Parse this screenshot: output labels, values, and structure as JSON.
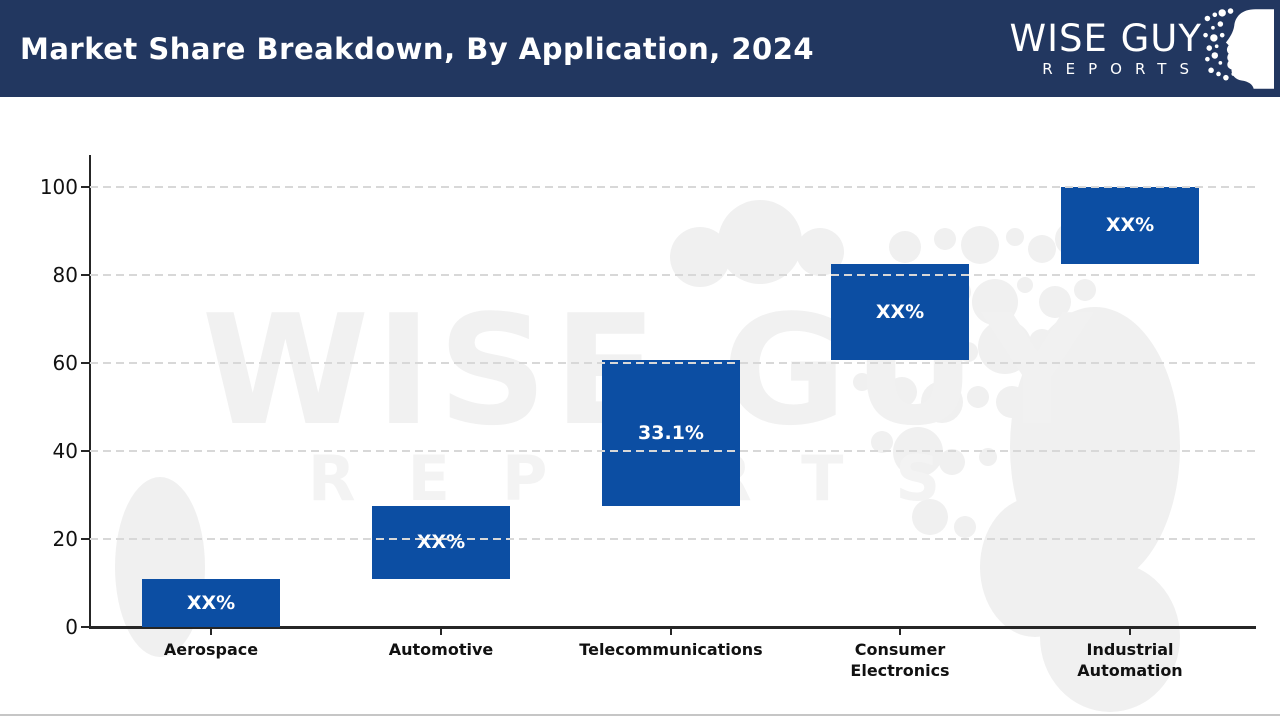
{
  "header": {
    "title": "Market Share Breakdown, By Application, 2024",
    "bg_color": "#223760"
  },
  "logo": {
    "line1": "WISE GUY",
    "line2": "REPORTS"
  },
  "watermark": {
    "line1": "WISE GUY",
    "line2": "REPORTS"
  },
  "chart_data": {
    "type": "bar",
    "subtype": "waterfall",
    "title": "Market Share Breakdown, By Application, 2024",
    "xlabel": "",
    "ylabel": "",
    "ylim": [
      0,
      100
    ],
    "yticks": [
      0,
      20,
      40,
      60,
      80,
      100
    ],
    "grid": "dashed-horizontal",
    "legend": "none",
    "bar_color": "#0c4ea3",
    "categories": [
      "Aerospace",
      "Automotive",
      "Telecommunications",
      "Consumer Electronics",
      "Industrial Automation"
    ],
    "bars": [
      {
        "category": "Aerospace",
        "category_lines": [
          "Aerospace"
        ],
        "start": 0,
        "end": 11,
        "value": 11,
        "value_label": "XX%"
      },
      {
        "category": "Automotive",
        "category_lines": [
          "Automotive"
        ],
        "start": 11,
        "end": 27.6,
        "value": 16.6,
        "value_label": "XX%"
      },
      {
        "category": "Telecommunications",
        "category_lines": [
          "Telecommunications"
        ],
        "start": 27.6,
        "end": 60.7,
        "value": 33.1,
        "value_label": "33.1%"
      },
      {
        "category": "Consumer Electronics",
        "category_lines": [
          "Consumer",
          "Electronics"
        ],
        "start": 60.7,
        "end": 82.6,
        "value": 21.9,
        "value_label": "XX%"
      },
      {
        "category": "Industrial Automation",
        "category_lines": [
          "Industrial",
          "Automation"
        ],
        "start": 82.6,
        "end": 100,
        "value": 17.4,
        "value_label": "XX%"
      }
    ]
  }
}
